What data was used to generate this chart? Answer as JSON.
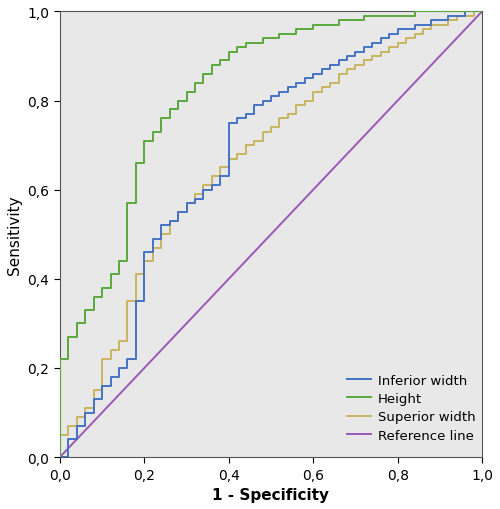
{
  "title": "",
  "xlabel": "1 - Specificity",
  "ylabel": "Sensitivity",
  "xlim": [
    0.0,
    1.0
  ],
  "ylim": [
    0.0,
    1.0
  ],
  "xticks": [
    0.0,
    0.2,
    0.4,
    0.6,
    0.8,
    1.0
  ],
  "yticks": [
    0.0,
    0.2,
    0.4,
    0.6,
    0.8,
    1.0
  ],
  "background_color": "#e8e8e8",
  "figure_background": "#ffffff",
  "legend_labels": [
    "Inferior width",
    "Height",
    "Superior width",
    "Reference line"
  ],
  "reference_line_color": "#9b59b6",
  "inferior_width_color": "#4472c4",
  "height_color": "#5aaa3c",
  "superior_width_color": "#c8b560",
  "line_width": 1.4,
  "font_size": 11,
  "tick_font_size": 10,
  "inferior_width_x": [
    0.0,
    0.0,
    0.02,
    0.02,
    0.04,
    0.04,
    0.06,
    0.06,
    0.08,
    0.08,
    0.1,
    0.1,
    0.12,
    0.12,
    0.14,
    0.14,
    0.16,
    0.16,
    0.18,
    0.18,
    0.2,
    0.2,
    0.22,
    0.22,
    0.24,
    0.24,
    0.26,
    0.26,
    0.28,
    0.28,
    0.3,
    0.3,
    0.32,
    0.32,
    0.34,
    0.34,
    0.36,
    0.36,
    0.38,
    0.38,
    0.4,
    0.4,
    0.42,
    0.42,
    0.44,
    0.44,
    0.46,
    0.46,
    0.48,
    0.48,
    0.5,
    0.5,
    0.52,
    0.52,
    0.54,
    0.54,
    0.56,
    0.56,
    0.58,
    0.58,
    0.6,
    0.6,
    0.62,
    0.62,
    0.64,
    0.64,
    0.66,
    0.66,
    0.68,
    0.68,
    0.7,
    0.7,
    0.72,
    0.72,
    0.74,
    0.74,
    0.76,
    0.76,
    0.78,
    0.78,
    0.8,
    0.8,
    0.82,
    0.82,
    0.84,
    0.84,
    0.86,
    0.86,
    0.88,
    0.88,
    0.9,
    0.9,
    0.92,
    0.92,
    0.94,
    0.94,
    0.96,
    0.96,
    0.98,
    0.98,
    1.0
  ],
  "inferior_width_y": [
    0.0,
    0.0,
    0.0,
    0.04,
    0.04,
    0.07,
    0.07,
    0.1,
    0.1,
    0.13,
    0.13,
    0.16,
    0.16,
    0.18,
    0.18,
    0.2,
    0.2,
    0.22,
    0.22,
    0.35,
    0.35,
    0.46,
    0.46,
    0.49,
    0.49,
    0.52,
    0.52,
    0.53,
    0.53,
    0.55,
    0.55,
    0.57,
    0.57,
    0.58,
    0.58,
    0.6,
    0.6,
    0.61,
    0.61,
    0.63,
    0.63,
    0.75,
    0.75,
    0.76,
    0.76,
    0.77,
    0.77,
    0.79,
    0.79,
    0.8,
    0.8,
    0.81,
    0.81,
    0.82,
    0.82,
    0.83,
    0.83,
    0.84,
    0.84,
    0.85,
    0.85,
    0.86,
    0.86,
    0.87,
    0.87,
    0.88,
    0.88,
    0.89,
    0.89,
    0.9,
    0.9,
    0.91,
    0.91,
    0.92,
    0.92,
    0.93,
    0.93,
    0.94,
    0.94,
    0.95,
    0.95,
    0.96,
    0.96,
    0.96,
    0.96,
    0.97,
    0.97,
    0.97,
    0.97,
    0.98,
    0.98,
    0.98,
    0.98,
    0.99,
    0.99,
    0.99,
    0.99,
    1.0,
    1.0,
    1.0,
    1.0
  ],
  "height_x": [
    0.0,
    0.0,
    0.02,
    0.02,
    0.04,
    0.04,
    0.06,
    0.06,
    0.08,
    0.08,
    0.1,
    0.1,
    0.12,
    0.12,
    0.14,
    0.14,
    0.16,
    0.16,
    0.18,
    0.18,
    0.2,
    0.2,
    0.22,
    0.22,
    0.24,
    0.24,
    0.26,
    0.26,
    0.28,
    0.28,
    0.3,
    0.3,
    0.32,
    0.32,
    0.34,
    0.34,
    0.36,
    0.36,
    0.38,
    0.38,
    0.4,
    0.4,
    0.42,
    0.42,
    0.44,
    0.44,
    0.46,
    0.46,
    0.48,
    0.48,
    0.5,
    0.5,
    0.52,
    0.52,
    0.54,
    0.54,
    0.56,
    0.56,
    0.58,
    0.58,
    0.6,
    0.6,
    0.62,
    0.62,
    0.64,
    0.64,
    0.66,
    0.66,
    0.68,
    0.68,
    0.7,
    0.7,
    0.72,
    0.72,
    0.74,
    0.74,
    0.76,
    0.76,
    0.78,
    0.78,
    0.8,
    0.8,
    0.82,
    0.82,
    0.84,
    0.84,
    0.86,
    0.86,
    0.88,
    0.88,
    0.9,
    0.9,
    0.92,
    0.92,
    0.94,
    0.94,
    0.96,
    0.96,
    0.98,
    0.98,
    1.0
  ],
  "height_y": [
    0.0,
    0.22,
    0.22,
    0.27,
    0.27,
    0.3,
    0.3,
    0.33,
    0.33,
    0.36,
    0.36,
    0.38,
    0.38,
    0.41,
    0.41,
    0.44,
    0.44,
    0.57,
    0.57,
    0.66,
    0.66,
    0.71,
    0.71,
    0.73,
    0.73,
    0.76,
    0.76,
    0.78,
    0.78,
    0.8,
    0.8,
    0.82,
    0.82,
    0.84,
    0.84,
    0.86,
    0.86,
    0.88,
    0.88,
    0.89,
    0.89,
    0.91,
    0.91,
    0.92,
    0.92,
    0.93,
    0.93,
    0.93,
    0.93,
    0.94,
    0.94,
    0.94,
    0.94,
    0.95,
    0.95,
    0.95,
    0.95,
    0.96,
    0.96,
    0.96,
    0.96,
    0.97,
    0.97,
    0.97,
    0.97,
    0.97,
    0.97,
    0.98,
    0.98,
    0.98,
    0.98,
    0.98,
    0.98,
    0.99,
    0.99,
    0.99,
    0.99,
    0.99,
    0.99,
    0.99,
    0.99,
    0.99,
    0.99,
    0.99,
    0.99,
    1.0,
    1.0,
    1.0,
    1.0,
    1.0,
    1.0,
    1.0,
    1.0,
    1.0,
    1.0,
    1.0,
    1.0,
    1.0,
    1.0,
    1.0,
    1.0
  ],
  "superior_width_x": [
    0.0,
    0.0,
    0.02,
    0.02,
    0.04,
    0.04,
    0.06,
    0.06,
    0.08,
    0.08,
    0.1,
    0.1,
    0.12,
    0.12,
    0.14,
    0.14,
    0.16,
    0.16,
    0.18,
    0.18,
    0.2,
    0.2,
    0.22,
    0.22,
    0.24,
    0.24,
    0.26,
    0.26,
    0.28,
    0.28,
    0.3,
    0.3,
    0.32,
    0.32,
    0.34,
    0.34,
    0.36,
    0.36,
    0.38,
    0.38,
    0.4,
    0.4,
    0.42,
    0.42,
    0.44,
    0.44,
    0.46,
    0.46,
    0.48,
    0.48,
    0.5,
    0.5,
    0.52,
    0.52,
    0.54,
    0.54,
    0.56,
    0.56,
    0.58,
    0.58,
    0.6,
    0.6,
    0.62,
    0.62,
    0.64,
    0.64,
    0.66,
    0.66,
    0.68,
    0.68,
    0.7,
    0.7,
    0.72,
    0.72,
    0.74,
    0.74,
    0.76,
    0.76,
    0.78,
    0.78,
    0.8,
    0.8,
    0.82,
    0.82,
    0.84,
    0.84,
    0.86,
    0.86,
    0.88,
    0.88,
    0.9,
    0.9,
    0.92,
    0.92,
    0.94,
    0.94,
    0.96,
    0.96,
    0.98,
    0.98,
    1.0
  ],
  "superior_width_y": [
    0.0,
    0.05,
    0.05,
    0.07,
    0.07,
    0.09,
    0.09,
    0.11,
    0.11,
    0.15,
    0.15,
    0.22,
    0.22,
    0.24,
    0.24,
    0.26,
    0.26,
    0.35,
    0.35,
    0.41,
    0.41,
    0.44,
    0.44,
    0.47,
    0.47,
    0.5,
    0.5,
    0.53,
    0.53,
    0.55,
    0.55,
    0.57,
    0.57,
    0.59,
    0.59,
    0.61,
    0.61,
    0.63,
    0.63,
    0.65,
    0.65,
    0.67,
    0.67,
    0.68,
    0.68,
    0.7,
    0.7,
    0.71,
    0.71,
    0.73,
    0.73,
    0.74,
    0.74,
    0.76,
    0.76,
    0.77,
    0.77,
    0.79,
    0.79,
    0.8,
    0.8,
    0.82,
    0.82,
    0.83,
    0.83,
    0.84,
    0.84,
    0.86,
    0.86,
    0.87,
    0.87,
    0.88,
    0.88,
    0.89,
    0.89,
    0.9,
    0.9,
    0.91,
    0.91,
    0.92,
    0.92,
    0.93,
    0.93,
    0.94,
    0.94,
    0.95,
    0.95,
    0.96,
    0.96,
    0.97,
    0.97,
    0.97,
    0.97,
    0.98,
    0.98,
    0.99,
    0.99,
    0.99,
    0.99,
    1.0,
    1.0
  ]
}
